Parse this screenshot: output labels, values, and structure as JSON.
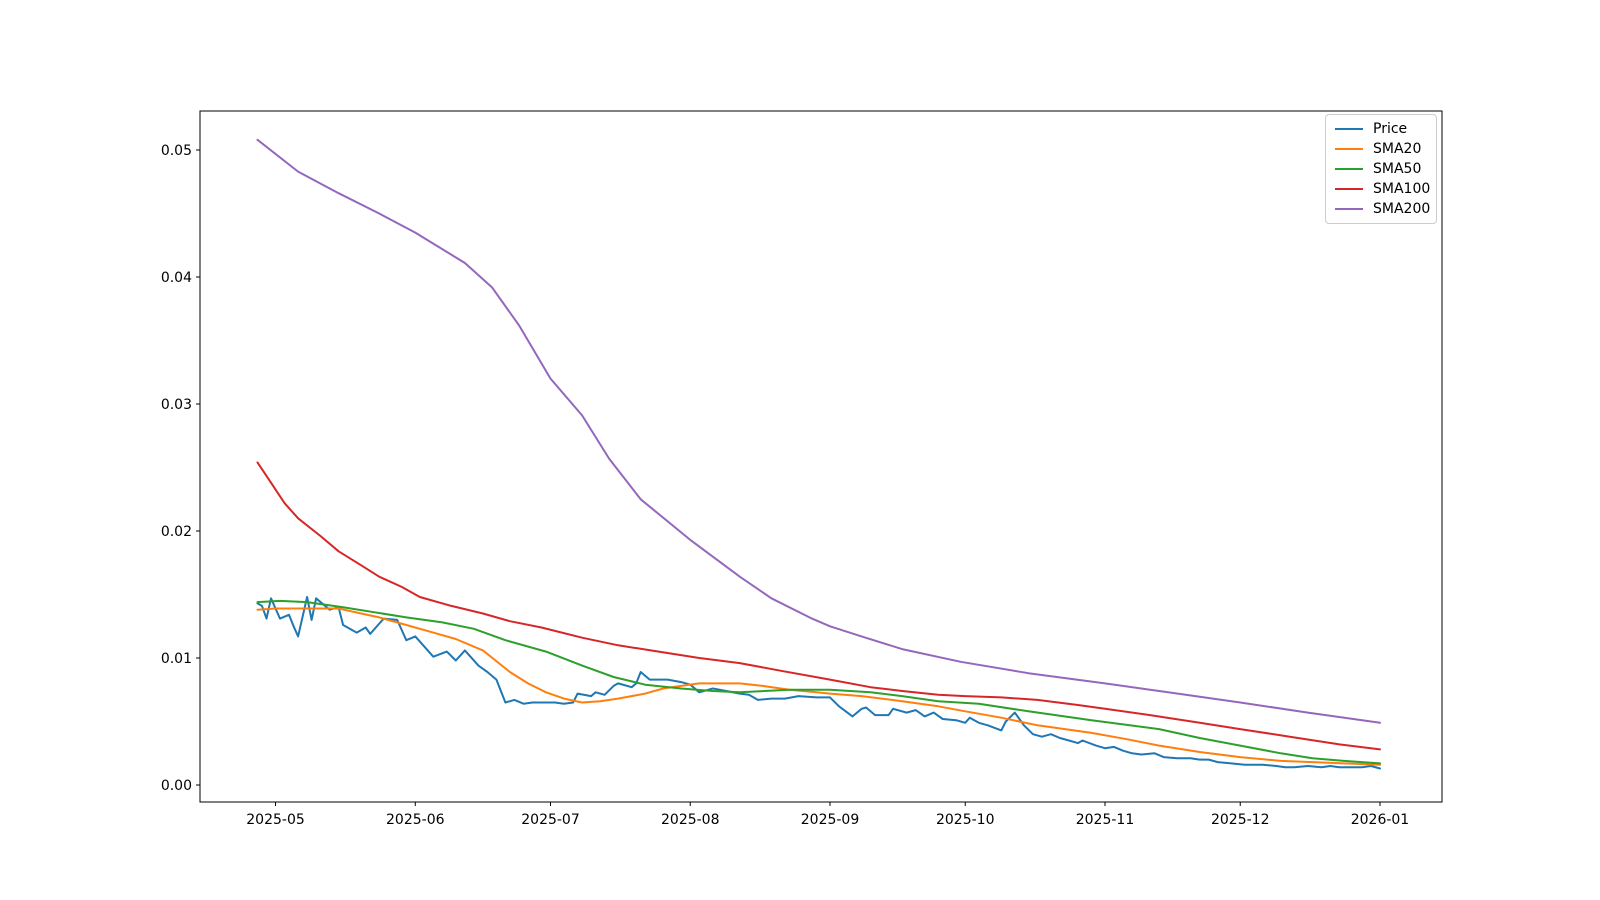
{
  "figure": {
    "background_color": "#ffffff",
    "plot_border_color": "#000000"
  },
  "chart_data": {
    "type": "line",
    "title": "",
    "xlabel": "",
    "ylabel": "",
    "grid": false,
    "legend_position": "upper right",
    "legend_entries": [
      "Price",
      "SMA20",
      "SMA50",
      "SMA100",
      "SMA200"
    ],
    "xlim": [
      "2025-04-14",
      "2026-01-14"
    ],
    "ylim": [
      -0.0013,
      0.0531
    ],
    "x_axis": {
      "ticks": [
        {
          "date": "2025-05-01",
          "label": "2025-05"
        },
        {
          "date": "2025-06-01",
          "label": "2025-06"
        },
        {
          "date": "2025-07-01",
          "label": "2025-07"
        },
        {
          "date": "2025-08-01",
          "label": "2025-08"
        },
        {
          "date": "2025-09-01",
          "label": "2025-09"
        },
        {
          "date": "2025-10-01",
          "label": "2025-10"
        },
        {
          "date": "2025-11-01",
          "label": "2025-11"
        },
        {
          "date": "2025-12-01",
          "label": "2025-12"
        },
        {
          "date": "2026-01-01",
          "label": "2026-01"
        }
      ]
    },
    "y_axis": {
      "ticks": [
        {
          "value": 0.0,
          "label": "0.00"
        },
        {
          "value": 0.01,
          "label": "0.01"
        },
        {
          "value": 0.02,
          "label": "0.02"
        },
        {
          "value": 0.03,
          "label": "0.03"
        },
        {
          "value": 0.04,
          "label": "0.04"
        },
        {
          "value": 0.05,
          "label": "0.05"
        }
      ]
    },
    "series": [
      {
        "name": "Price",
        "color": "#1f77b4",
        "points": [
          [
            "2025-04-27",
            0.0143
          ],
          [
            "2025-04-28",
            0.0141
          ],
          [
            "2025-04-29",
            0.0131
          ],
          [
            "2025-04-30",
            0.0147
          ],
          [
            "2025-05-02",
            0.0131
          ],
          [
            "2025-05-04",
            0.0134
          ],
          [
            "2025-05-05",
            0.0125
          ],
          [
            "2025-05-06",
            0.0117
          ],
          [
            "2025-05-08",
            0.0148
          ],
          [
            "2025-05-09",
            0.013
          ],
          [
            "2025-05-10",
            0.0147
          ],
          [
            "2025-05-13",
            0.0138
          ],
          [
            "2025-05-15",
            0.014
          ],
          [
            "2025-05-16",
            0.0126
          ],
          [
            "2025-05-19",
            0.012
          ],
          [
            "2025-05-21",
            0.0124
          ],
          [
            "2025-05-22",
            0.0119
          ],
          [
            "2025-05-25",
            0.0131
          ],
          [
            "2025-05-28",
            0.013
          ],
          [
            "2025-05-30",
            0.0114
          ],
          [
            "2025-06-01",
            0.0117
          ],
          [
            "2025-06-05",
            0.0101
          ],
          [
            "2025-06-08",
            0.0105
          ],
          [
            "2025-06-10",
            0.0098
          ],
          [
            "2025-06-12",
            0.0106
          ],
          [
            "2025-06-15",
            0.0094
          ],
          [
            "2025-06-17",
            0.0089
          ],
          [
            "2025-06-19",
            0.0083
          ],
          [
            "2025-06-21",
            0.0065
          ],
          [
            "2025-06-23",
            0.0067
          ],
          [
            "2025-06-25",
            0.0064
          ],
          [
            "2025-06-27",
            0.0065
          ],
          [
            "2025-06-30",
            0.0065
          ],
          [
            "2025-07-02",
            0.0065
          ],
          [
            "2025-07-04",
            0.0064
          ],
          [
            "2025-07-06",
            0.0065
          ],
          [
            "2025-07-07",
            0.0072
          ],
          [
            "2025-07-10",
            0.007
          ],
          [
            "2025-07-11",
            0.0073
          ],
          [
            "2025-07-13",
            0.0071
          ],
          [
            "2025-07-15",
            0.0078
          ],
          [
            "2025-07-16",
            0.008
          ],
          [
            "2025-07-19",
            0.0077
          ],
          [
            "2025-07-20",
            0.008
          ],
          [
            "2025-07-21",
            0.0089
          ],
          [
            "2025-07-23",
            0.0083
          ],
          [
            "2025-07-25",
            0.0083
          ],
          [
            "2025-07-27",
            0.0083
          ],
          [
            "2025-07-30",
            0.0081
          ],
          [
            "2025-08-01",
            0.0079
          ],
          [
            "2025-08-03",
            0.0073
          ],
          [
            "2025-08-06",
            0.0076
          ],
          [
            "2025-08-09",
            0.0074
          ],
          [
            "2025-08-12",
            0.0072
          ],
          [
            "2025-08-14",
            0.0071
          ],
          [
            "2025-08-16",
            0.0067
          ],
          [
            "2025-08-19",
            0.0068
          ],
          [
            "2025-08-22",
            0.0068
          ],
          [
            "2025-08-25",
            0.007
          ],
          [
            "2025-08-29",
            0.0069
          ],
          [
            "2025-09-01",
            0.0069
          ],
          [
            "2025-09-03",
            0.0062
          ],
          [
            "2025-09-06",
            0.0054
          ],
          [
            "2025-09-08",
            0.006
          ],
          [
            "2025-09-09",
            0.0061
          ],
          [
            "2025-09-11",
            0.0055
          ],
          [
            "2025-09-14",
            0.0055
          ],
          [
            "2025-09-15",
            0.006
          ],
          [
            "2025-09-18",
            0.0057
          ],
          [
            "2025-09-20",
            0.0059
          ],
          [
            "2025-09-22",
            0.0054
          ],
          [
            "2025-09-24",
            0.0057
          ],
          [
            "2025-09-26",
            0.0052
          ],
          [
            "2025-09-29",
            0.0051
          ],
          [
            "2025-10-01",
            0.0049
          ],
          [
            "2025-10-02",
            0.0053
          ],
          [
            "2025-10-04",
            0.0049
          ],
          [
            "2025-10-06",
            0.0047
          ],
          [
            "2025-10-09",
            0.0043
          ],
          [
            "2025-10-10",
            0.005
          ],
          [
            "2025-10-12",
            0.0057
          ],
          [
            "2025-10-14",
            0.0047
          ],
          [
            "2025-10-16",
            0.004
          ],
          [
            "2025-10-18",
            0.0038
          ],
          [
            "2025-10-20",
            0.004
          ],
          [
            "2025-10-22",
            0.0037
          ],
          [
            "2025-10-24",
            0.0035
          ],
          [
            "2025-10-26",
            0.0033
          ],
          [
            "2025-10-27",
            0.0035
          ],
          [
            "2025-10-30",
            0.0031
          ],
          [
            "2025-11-01",
            0.0029
          ],
          [
            "2025-11-03",
            0.003
          ],
          [
            "2025-11-05",
            0.0027
          ],
          [
            "2025-11-07",
            0.0025
          ],
          [
            "2025-11-09",
            0.0024
          ],
          [
            "2025-11-12",
            0.0025
          ],
          [
            "2025-11-14",
            0.0022
          ],
          [
            "2025-11-17",
            0.0021
          ],
          [
            "2025-11-20",
            0.0021
          ],
          [
            "2025-11-22",
            0.002
          ],
          [
            "2025-11-24",
            0.002
          ],
          [
            "2025-11-26",
            0.0018
          ],
          [
            "2025-11-29",
            0.0017
          ],
          [
            "2025-12-02",
            0.0016
          ],
          [
            "2025-12-04",
            0.0016
          ],
          [
            "2025-12-06",
            0.0016
          ],
          [
            "2025-12-09",
            0.0015
          ],
          [
            "2025-12-11",
            0.0014
          ],
          [
            "2025-12-13",
            0.0014
          ],
          [
            "2025-12-16",
            0.0015
          ],
          [
            "2025-12-19",
            0.0014
          ],
          [
            "2025-12-21",
            0.0015
          ],
          [
            "2025-12-23",
            0.0014
          ],
          [
            "2025-12-25",
            0.0014
          ],
          [
            "2025-12-28",
            0.0014
          ],
          [
            "2025-12-30",
            0.0015
          ],
          [
            "2026-01-01",
            0.0013
          ]
        ]
      },
      {
        "name": "SMA20",
        "color": "#ff7f0e",
        "points": [
          [
            "2025-04-27",
            0.0138
          ],
          [
            "2025-05-01",
            0.0139
          ],
          [
            "2025-05-06",
            0.0139
          ],
          [
            "2025-05-10",
            0.0139
          ],
          [
            "2025-05-15",
            0.0139
          ],
          [
            "2025-05-20",
            0.0135
          ],
          [
            "2025-05-24",
            0.0132
          ],
          [
            "2025-05-30",
            0.0126
          ],
          [
            "2025-06-04",
            0.0121
          ],
          [
            "2025-06-10",
            0.0115
          ],
          [
            "2025-06-16",
            0.0106
          ],
          [
            "2025-06-22",
            0.0089
          ],
          [
            "2025-06-26",
            0.008
          ],
          [
            "2025-06-30",
            0.0073
          ],
          [
            "2025-07-04",
            0.0068
          ],
          [
            "2025-07-08",
            0.0065
          ],
          [
            "2025-07-12",
            0.0066
          ],
          [
            "2025-07-16",
            0.0068
          ],
          [
            "2025-07-22",
            0.0072
          ],
          [
            "2025-07-26",
            0.0076
          ],
          [
            "2025-07-30",
            0.0078
          ],
          [
            "2025-08-03",
            0.008
          ],
          [
            "2025-08-08",
            0.008
          ],
          [
            "2025-08-12",
            0.008
          ],
          [
            "2025-08-17",
            0.0078
          ],
          [
            "2025-08-23",
            0.0075
          ],
          [
            "2025-08-29",
            0.0073
          ],
          [
            "2025-09-01",
            0.0072
          ],
          [
            "2025-09-08",
            0.007
          ],
          [
            "2025-09-17",
            0.0066
          ],
          [
            "2025-09-25",
            0.0062
          ],
          [
            "2025-10-01",
            0.0058
          ],
          [
            "2025-10-09",
            0.0053
          ],
          [
            "2025-10-17",
            0.0047
          ],
          [
            "2025-10-29",
            0.0041
          ],
          [
            "2025-11-06",
            0.0036
          ],
          [
            "2025-11-13",
            0.0031
          ],
          [
            "2025-11-22",
            0.0026
          ],
          [
            "2025-12-01",
            0.0022
          ],
          [
            "2025-12-10",
            0.0019
          ],
          [
            "2025-12-17",
            0.0018
          ],
          [
            "2025-12-24",
            0.0017
          ],
          [
            "2026-01-01",
            0.0016
          ]
        ]
      },
      {
        "name": "SMA50",
        "color": "#2ca02c",
        "points": [
          [
            "2025-04-27",
            0.0144
          ],
          [
            "2025-05-02",
            0.0145
          ],
          [
            "2025-05-08",
            0.0144
          ],
          [
            "2025-05-16",
            0.014
          ],
          [
            "2025-05-23",
            0.0136
          ],
          [
            "2025-05-30",
            0.0132
          ],
          [
            "2025-06-07",
            0.0128
          ],
          [
            "2025-06-14",
            0.0123
          ],
          [
            "2025-06-21",
            0.0114
          ],
          [
            "2025-06-30",
            0.0105
          ],
          [
            "2025-07-08",
            0.0094
          ],
          [
            "2025-07-15",
            0.0085
          ],
          [
            "2025-07-22",
            0.0079
          ],
          [
            "2025-07-30",
            0.0076
          ],
          [
            "2025-08-06",
            0.0074
          ],
          [
            "2025-08-12",
            0.0073
          ],
          [
            "2025-08-23",
            0.0075
          ],
          [
            "2025-09-01",
            0.0075
          ],
          [
            "2025-09-10",
            0.0073
          ],
          [
            "2025-09-17",
            0.007
          ],
          [
            "2025-09-25",
            0.0066
          ],
          [
            "2025-10-04",
            0.0064
          ],
          [
            "2025-10-15",
            0.0058
          ],
          [
            "2025-10-29",
            0.0051
          ],
          [
            "2025-11-13",
            0.0044
          ],
          [
            "2025-11-22",
            0.0037
          ],
          [
            "2025-12-01",
            0.0031
          ],
          [
            "2025-12-10",
            0.0025
          ],
          [
            "2025-12-17",
            0.0021
          ],
          [
            "2025-12-24",
            0.0019
          ],
          [
            "2026-01-01",
            0.0017
          ]
        ]
      },
      {
        "name": "SMA100",
        "color": "#d62728",
        "points": [
          [
            "2025-04-27",
            0.0254
          ],
          [
            "2025-04-30",
            0.0238
          ],
          [
            "2025-05-03",
            0.0222
          ],
          [
            "2025-05-06",
            0.021
          ],
          [
            "2025-05-11",
            0.0196
          ],
          [
            "2025-05-15",
            0.0184
          ],
          [
            "2025-05-20",
            0.0173
          ],
          [
            "2025-05-24",
            0.0164
          ],
          [
            "2025-05-29",
            0.0156
          ],
          [
            "2025-06-02",
            0.0148
          ],
          [
            "2025-06-09",
            0.0141
          ],
          [
            "2025-06-16",
            0.0135
          ],
          [
            "2025-06-22",
            0.0129
          ],
          [
            "2025-06-29",
            0.0124
          ],
          [
            "2025-07-08",
            0.0116
          ],
          [
            "2025-07-16",
            0.011
          ],
          [
            "2025-07-25",
            0.0105
          ],
          [
            "2025-08-03",
            0.01
          ],
          [
            "2025-08-12",
            0.0096
          ],
          [
            "2025-08-21",
            0.009
          ],
          [
            "2025-09-01",
            0.0083
          ],
          [
            "2025-09-10",
            0.0077
          ],
          [
            "2025-09-17",
            0.0074
          ],
          [
            "2025-09-25",
            0.0071
          ],
          [
            "2025-10-01",
            0.007
          ],
          [
            "2025-10-09",
            0.0069
          ],
          [
            "2025-10-17",
            0.0067
          ],
          [
            "2025-10-26",
            0.0063
          ],
          [
            "2025-11-01",
            0.006
          ],
          [
            "2025-11-11",
            0.0055
          ],
          [
            "2025-11-22",
            0.0049
          ],
          [
            "2025-12-01",
            0.0044
          ],
          [
            "2025-12-12",
            0.0038
          ],
          [
            "2025-12-23",
            0.0032
          ],
          [
            "2026-01-01",
            0.0028
          ]
        ]
      },
      {
        "name": "SMA200",
        "color": "#9467bd",
        "points": [
          [
            "2025-04-27",
            0.0508
          ],
          [
            "2025-05-06",
            0.0483
          ],
          [
            "2025-05-15",
            0.0466
          ],
          [
            "2025-05-24",
            0.045
          ],
          [
            "2025-06-01",
            0.0435
          ],
          [
            "2025-06-12",
            0.0411
          ],
          [
            "2025-06-18",
            0.0392
          ],
          [
            "2025-06-24",
            0.0362
          ],
          [
            "2025-07-01",
            0.032
          ],
          [
            "2025-07-08",
            0.0291
          ],
          [
            "2025-07-14",
            0.0257
          ],
          [
            "2025-07-21",
            0.0225
          ],
          [
            "2025-08-01",
            0.0193
          ],
          [
            "2025-08-12",
            0.0164
          ],
          [
            "2025-08-19",
            0.0147
          ],
          [
            "2025-08-28",
            0.0131
          ],
          [
            "2025-09-01",
            0.0125
          ],
          [
            "2025-09-08",
            0.0117
          ],
          [
            "2025-09-17",
            0.0107
          ],
          [
            "2025-09-30",
            0.0097
          ],
          [
            "2025-10-15",
            0.0088
          ],
          [
            "2025-11-01",
            0.008
          ],
          [
            "2025-11-15",
            0.0073
          ],
          [
            "2025-12-01",
            0.0065
          ],
          [
            "2025-12-16",
            0.0057
          ],
          [
            "2026-01-01",
            0.0049
          ]
        ]
      }
    ]
  }
}
